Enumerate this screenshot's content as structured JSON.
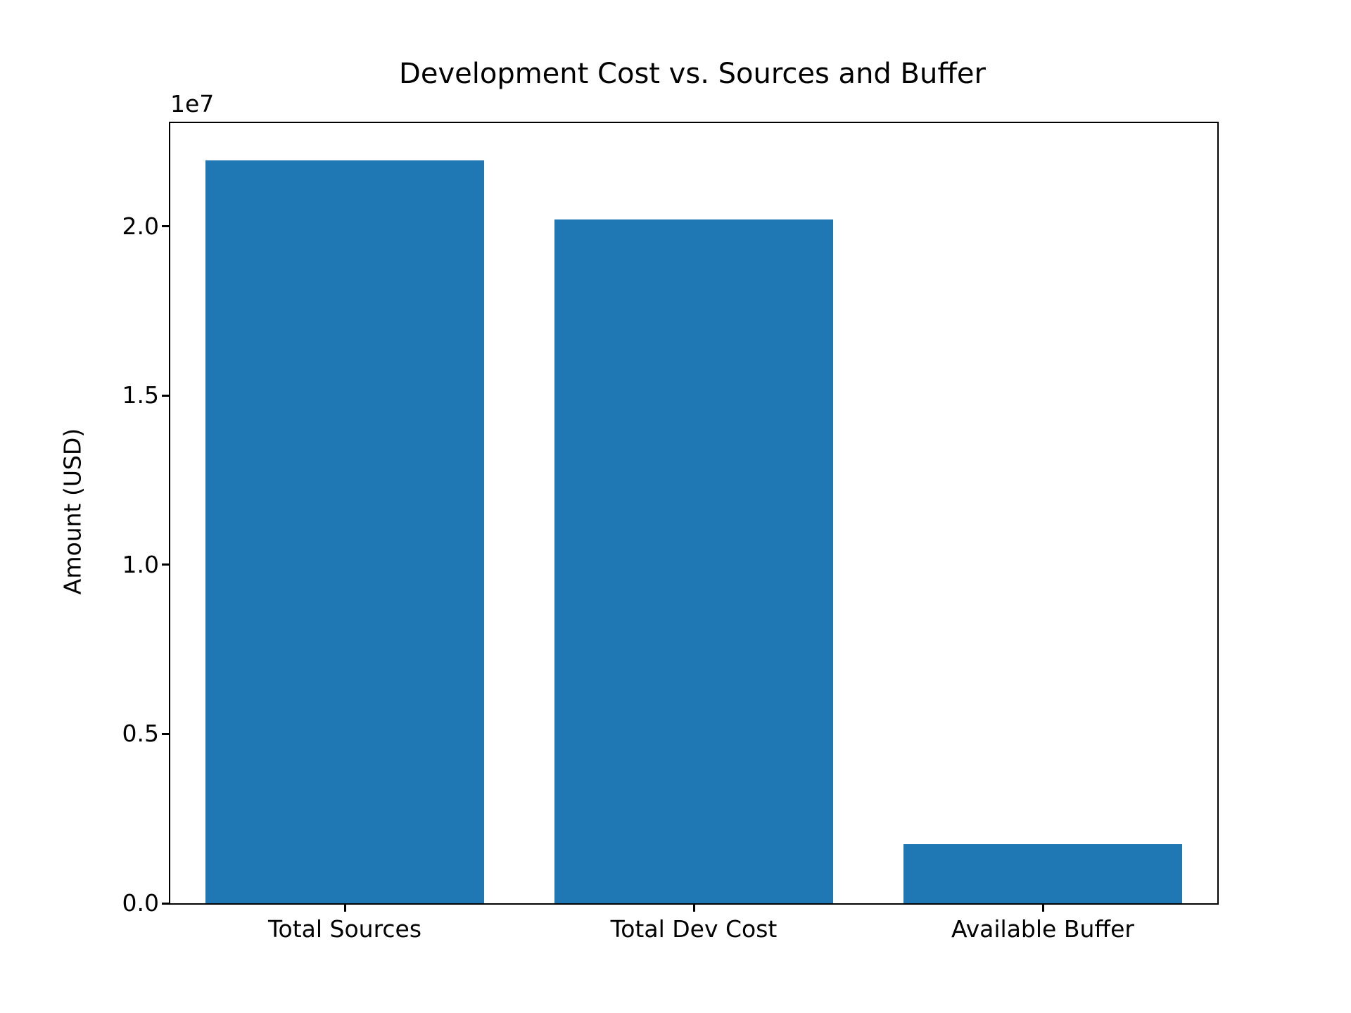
{
  "figure": {
    "title": "Development Cost vs. Sources and Buffer",
    "ylabel": "Amount (USD)",
    "offset_text": "1e7",
    "background_color": "#ffffff",
    "axis_color": "#000000"
  },
  "chart_data": {
    "type": "bar",
    "title": "Development Cost vs. Sources and Buffer",
    "categories": [
      "Total Sources",
      "Total Dev Cost",
      "Available Buffer"
    ],
    "values": [
      21950000,
      20200000,
      1750000
    ],
    "xlabel": "",
    "ylabel": "Amount (USD)",
    "ylim": [
      0,
      23050000
    ],
    "yticks": [
      0,
      5000000,
      10000000,
      15000000,
      20000000
    ],
    "ytick_labels": [
      "0.0",
      "0.5",
      "1.0",
      "1.5",
      "2.0"
    ],
    "offset_text": "1e7",
    "bar_color": "#1f77b4",
    "bar_width_fraction": 0.8,
    "grid": false,
    "legend": false
  }
}
